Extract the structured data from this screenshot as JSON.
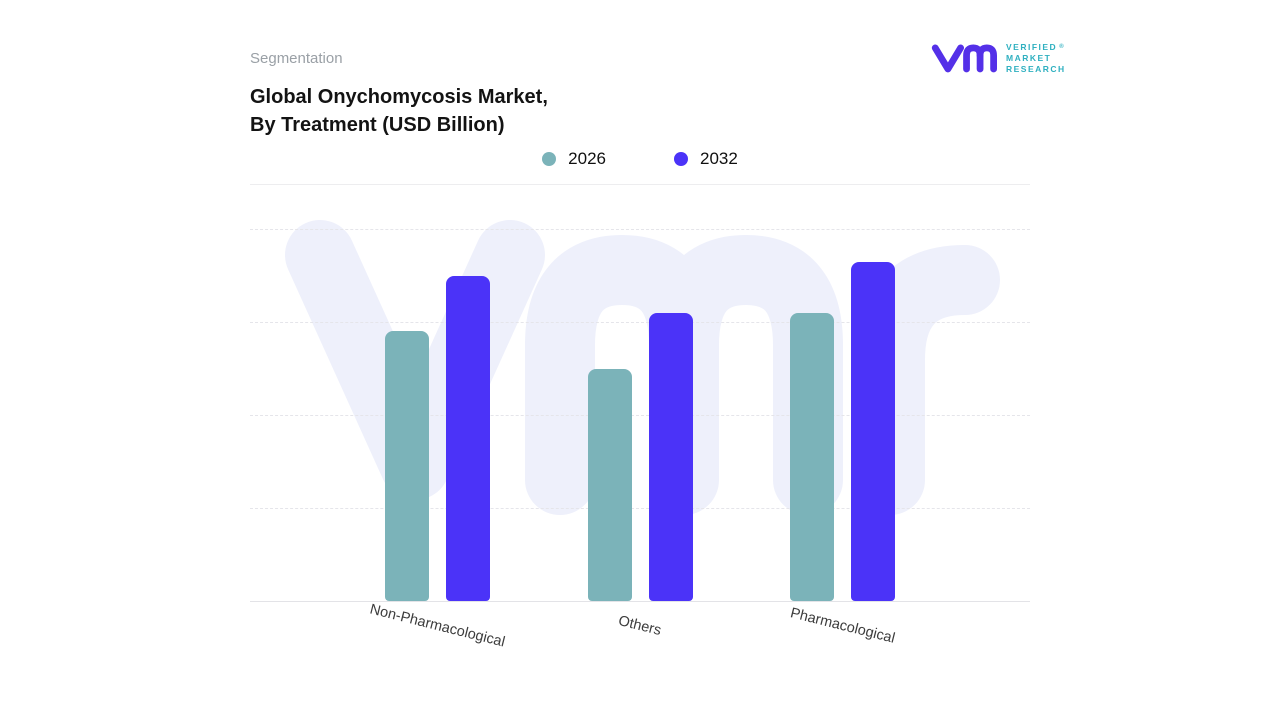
{
  "header": {
    "eyebrow": "Segmentation",
    "title_line1": "Global Onychomycosis Market,",
    "title_line2": "By Treatment (USD Billion)"
  },
  "logo": {
    "line1": "VERIFIED",
    "line2": "MARKET",
    "line3": "RESEARCH",
    "registered": "®",
    "mark_color": "#5430e8",
    "text_color": "#2fb0c0"
  },
  "chart_data": {
    "type": "bar",
    "title": "Global Onychomycosis Market, By Treatment (USD Billion)",
    "categories": [
      "Non-Pharmacological",
      "Others",
      "Pharmacological"
    ],
    "series": [
      {
        "name": "2026",
        "color": "#7bb3b9",
        "values": [
          2.9,
          2.5,
          3.1
        ]
      },
      {
        "name": "2032",
        "color": "#4b33f8",
        "values": [
          3.5,
          3.1,
          3.65
        ]
      }
    ],
    "ylim": [
      0,
      4
    ],
    "y_axis_labels_visible": false,
    "grid": "horizontal-dashed",
    "legend_position": "top-center",
    "watermark": "vmr",
    "colors": {
      "gridline": "#e5e5ea",
      "baseline": "#e3e3e7",
      "watermark": "#eef0fb",
      "axis_label": "#3c3c3c"
    }
  }
}
